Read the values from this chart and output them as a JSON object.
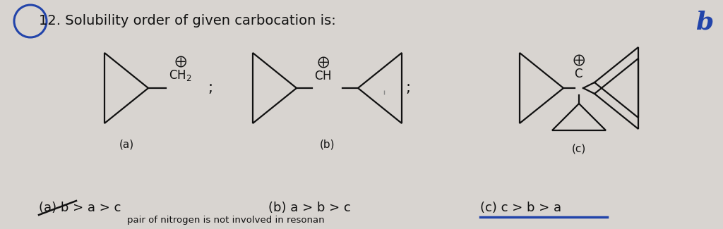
{
  "bg_color": "#d8d4d0",
  "title": "12. Solubility order of given carbocation is:",
  "title_fontsize": 14,
  "answer_a": "(a) b > a > c",
  "answer_b": "(b) a > b > c",
  "answer_c": "(c) c > b > a",
  "answer_fontsize": 13,
  "label_a": "(a)",
  "label_b": "(b)",
  "label_c": "(c)",
  "bottom_text": "pair of nitrogen is not involved in resonan",
  "circle_color": "#2244aa",
  "blue_b_color": "#2244aa"
}
